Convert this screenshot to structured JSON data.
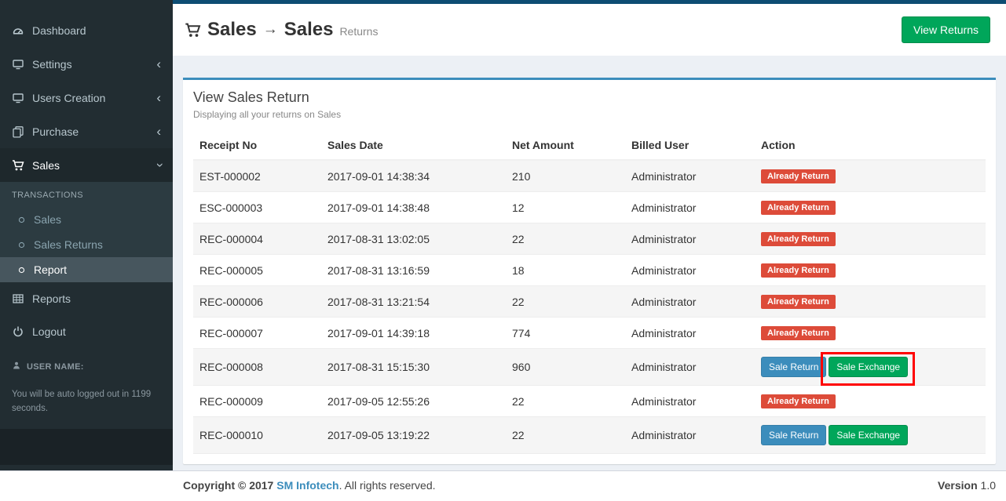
{
  "sidebar": {
    "menu_top": [
      {
        "label": "Dashboard",
        "icon": "dashboard",
        "chevron": "none",
        "active": false
      },
      {
        "label": "Settings",
        "icon": "monitor",
        "chevron": "left",
        "active": false
      },
      {
        "label": "Users Creation",
        "icon": "monitor",
        "chevron": "left",
        "active": false
      },
      {
        "label": "Purchase",
        "icon": "copy",
        "chevron": "left",
        "active": false
      },
      {
        "label": "Sales",
        "icon": "cart",
        "chevron": "down",
        "active": true
      }
    ],
    "submenu_header": "TRANSACTIONS",
    "submenu": [
      {
        "label": "Sales",
        "active": false
      },
      {
        "label": "Sales Returns",
        "active": false
      },
      {
        "label": "Report",
        "active": true
      }
    ],
    "menu_bottom": [
      {
        "label": "Reports",
        "icon": "table",
        "chevron": "none",
        "active": false
      },
      {
        "label": "Logout",
        "icon": "power",
        "chevron": "none",
        "active": false
      }
    ],
    "user_label": "USER NAME:",
    "auto_logout_text": "You will be auto logged out in 1199 seconds."
  },
  "header": {
    "title_primary": "Sales",
    "title_secondary": "Sales",
    "title_suffix": "Returns",
    "view_returns_label": "View Returns"
  },
  "panel": {
    "title": "View Sales Return",
    "subtitle": "Displaying all your returns on Sales"
  },
  "table": {
    "columns": [
      "Receipt No",
      "Sales Date",
      "Net Amount",
      "Billed User",
      "Action"
    ],
    "badge_already": "Already Return",
    "btn_sale_return": "Sale Return",
    "btn_sale_exchange": "Sale Exchange",
    "rows": [
      {
        "receipt": "EST-000002",
        "date": "2017-09-01 14:38:34",
        "amount": "210",
        "user": "Administrator",
        "action": "already",
        "highlight": false
      },
      {
        "receipt": "ESC-000003",
        "date": "2017-09-01 14:38:48",
        "amount": "12",
        "user": "Administrator",
        "action": "already",
        "highlight": false
      },
      {
        "receipt": "REC-000004",
        "date": "2017-08-31 13:02:05",
        "amount": "22",
        "user": "Administrator",
        "action": "already",
        "highlight": false
      },
      {
        "receipt": "REC-000005",
        "date": "2017-08-31 13:16:59",
        "amount": "18",
        "user": "Administrator",
        "action": "already",
        "highlight": false
      },
      {
        "receipt": "REC-000006",
        "date": "2017-08-31 13:21:54",
        "amount": "22",
        "user": "Administrator",
        "action": "already",
        "highlight": false
      },
      {
        "receipt": "REC-000007",
        "date": "2017-09-01 14:39:18",
        "amount": "774",
        "user": "Administrator",
        "action": "already",
        "highlight": false
      },
      {
        "receipt": "REC-000008",
        "date": "2017-08-31 15:15:30",
        "amount": "960",
        "user": "Administrator",
        "action": "buttons",
        "highlight": true
      },
      {
        "receipt": "REC-000009",
        "date": "2017-09-05 12:55:26",
        "amount": "22",
        "user": "Administrator",
        "action": "already",
        "highlight": false
      },
      {
        "receipt": "REC-000010",
        "date": "2017-09-05 13:19:22",
        "amount": "22",
        "user": "Administrator",
        "action": "buttons",
        "highlight": false
      }
    ]
  },
  "footer": {
    "copyright_prefix": "Copyright © 2017",
    "company": "SM Infotech",
    "copyright_suffix": ". All rights reserved.",
    "version_label": "Version",
    "version_value": "1.0"
  },
  "colors": {
    "accent_blue": "#3c8dbc",
    "success_green": "#00a65a",
    "danger_red": "#dd4b39",
    "sidebar_bg": "#222d32",
    "annotation_red": "#ff0000"
  }
}
